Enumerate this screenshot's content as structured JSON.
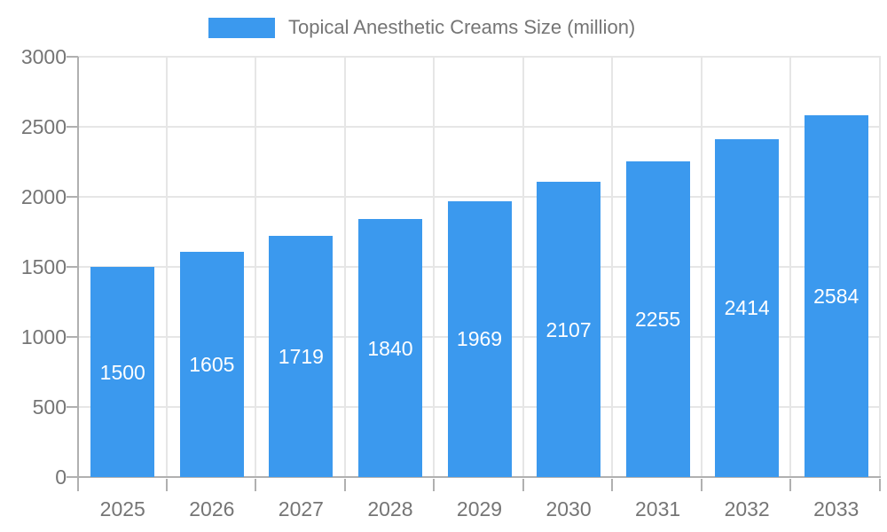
{
  "legend": {
    "label": "Topical Anesthetic Creams Size (million)"
  },
  "chart_data": {
    "type": "bar",
    "title": "Topical Anesthetic Creams Size (million)",
    "series_name": "Topical Anesthetic Creams Size (million)",
    "categories": [
      "2025",
      "2026",
      "2027",
      "2028",
      "2029",
      "2030",
      "2031",
      "2032",
      "2033"
    ],
    "values": [
      1500,
      1605,
      1719,
      1840,
      1969,
      2107,
      2255,
      2414,
      2584
    ],
    "xlabel": "",
    "ylabel": "",
    "ylim": [
      0,
      3000
    ],
    "y_ticks": [
      0,
      500,
      1000,
      1500,
      2000,
      2500,
      3000
    ],
    "grid": true,
    "legend_position": "top",
    "value_labels": "inside-center",
    "colors": {
      "bar": "#3b99ee",
      "value_label": "#ffffff",
      "axis_text": "#757575",
      "axis_line": "#b0b0b0",
      "gridline": "#e6e6e6"
    }
  }
}
